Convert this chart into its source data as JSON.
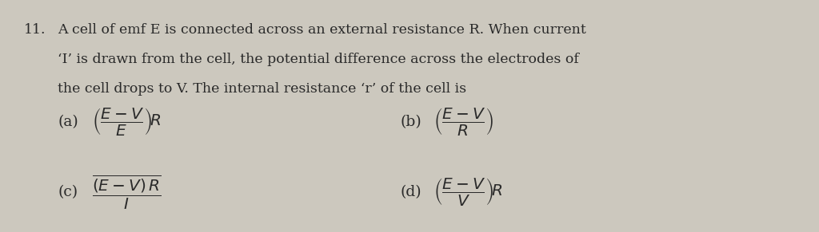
{
  "background_color": "#ccc8be",
  "fig_width": 10.24,
  "fig_height": 2.91,
  "dpi": 100,
  "text_color": "#2a2a2a",
  "font_size_body": 12.5,
  "font_size_options": 13.5,
  "q_num": "11.",
  "line1": "A cell of emf E is connected across an external resistance R. When current",
  "line2": "‘I’ is drawn from the cell, the potential difference across the electrodes of",
  "line3": "the cell drops to V. The internal resistance ‘r’ of the cell is"
}
